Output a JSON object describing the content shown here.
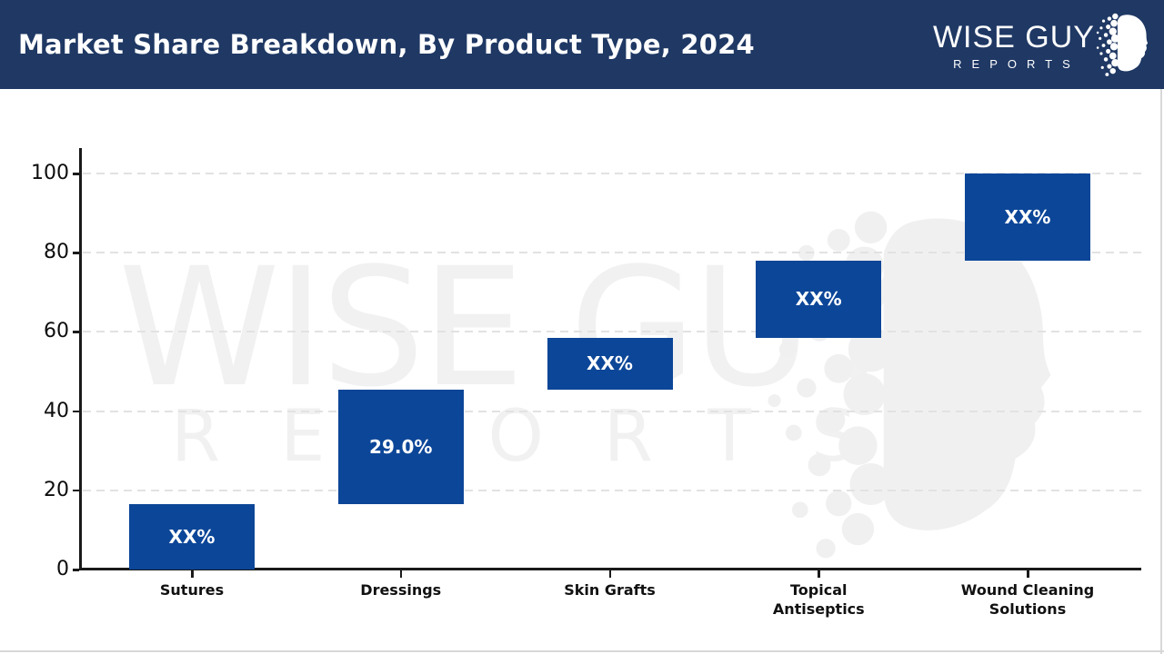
{
  "header": {
    "title": "Market Share Breakdown, By Product Type, 2024",
    "brand_name": "WISE GUY",
    "brand_sub": "REPORTS"
  },
  "watermark": {
    "line1": "WISE GUY",
    "line2": "REPORTS"
  },
  "colors": {
    "header_bg": "#1f3864",
    "bar_blue": "#0c4698",
    "bar_label": "#ffffff",
    "gridline": "#e2e2e2",
    "axis": "#1a1a1a",
    "watermark": "#f1f1f1"
  },
  "chart_data": {
    "type": "bar",
    "subtype": "floating-waterfall",
    "title": "Market Share Breakdown, By Product Type, 2024",
    "xlabel": "",
    "ylabel": "",
    "ylim": [
      0,
      106
    ],
    "y_ticks": [
      0,
      20,
      40,
      60,
      80,
      100
    ],
    "grid": "horizontal-dashed",
    "legend": "none",
    "categories": [
      "Sutures",
      "Dressings",
      "Skin Grafts",
      "Topical\nAntiseptics",
      "Wound Cleaning\nSolutions"
    ],
    "segments": [
      {
        "category": "Sutures",
        "label": "XX%",
        "start": 0,
        "end": 16.5,
        "value_shown": "XX",
        "value_estimate": 16.5
      },
      {
        "category": "Dressings",
        "label": "29.0%",
        "start": 16.5,
        "end": 45.5,
        "value_shown": "29.0",
        "value_estimate": 29.0
      },
      {
        "category": "Skin Grafts",
        "label": "XX%",
        "start": 45.5,
        "end": 58.5,
        "value_shown": "XX",
        "value_estimate": 13.0
      },
      {
        "category": "Topical\nAntiseptics",
        "label": "XX%",
        "start": 58.5,
        "end": 78,
        "value_shown": "XX",
        "value_estimate": 19.5
      },
      {
        "category": "Wound Cleaning\nSolutions",
        "label": "XX%",
        "start": 78,
        "end": 100,
        "value_shown": "XX",
        "value_estimate": 22.0
      }
    ]
  }
}
